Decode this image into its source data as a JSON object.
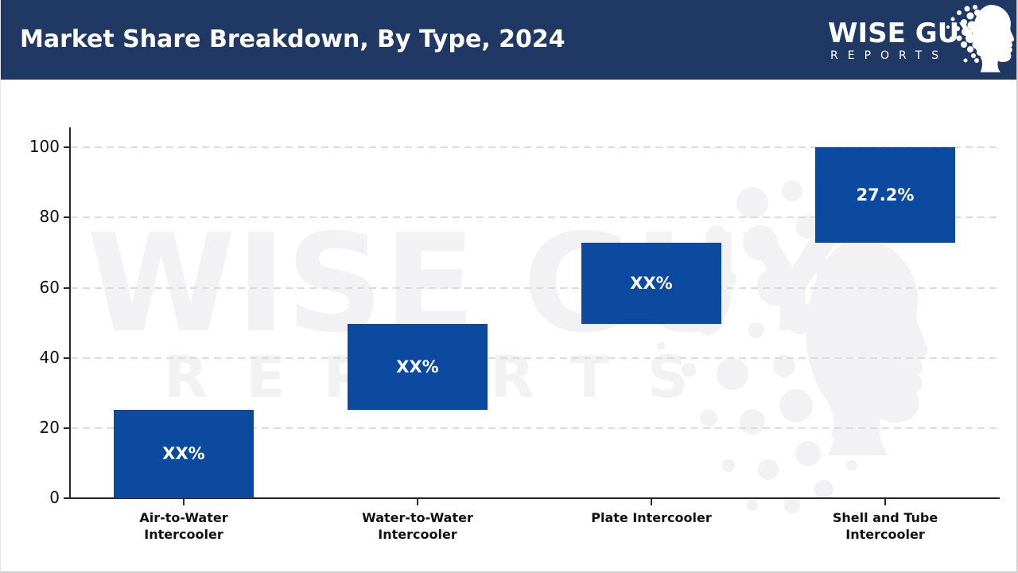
{
  "header": {
    "title": "Market Share Breakdown, By Type, 2024",
    "logo": {
      "line1": "WISE GUY",
      "line2": "REPORTS"
    }
  },
  "watermark": {
    "line1": "WISE GUY",
    "line2": "REPORTS"
  },
  "colors": {
    "header_bg": "#1f3864",
    "bar": "#0b4a9e",
    "bar_label_text": "#ffffff",
    "title_text": "#ffffff",
    "axis": "#262626",
    "tick_text": "#111111",
    "gridline": "#dcdcdc",
    "watermark": "#f2f2f4"
  },
  "chart_data": {
    "type": "bar",
    "subtype": "waterfall",
    "title": "Market Share Breakdown, By Type, 2024",
    "categories": [
      "Air-to-Water Intercooler",
      "Water-to-Water Intercooler",
      "Plate Intercooler",
      "Shell and Tube Intercooler"
    ],
    "category_label_lines": [
      [
        "Air-to-Water",
        "Intercooler"
      ],
      [
        "Water-to-Water",
        "Intercooler"
      ],
      [
        "Plate Intercooler"
      ],
      [
        "Shell and Tube",
        "Intercooler"
      ]
    ],
    "segments": [
      {
        "category": "Air-to-Water Intercooler",
        "start": 0,
        "end": 25.2,
        "value": 25.2,
        "label": "XX%"
      },
      {
        "category": "Water-to-Water Intercooler",
        "start": 25.2,
        "end": 49.8,
        "value": 24.6,
        "label": "XX%"
      },
      {
        "category": "Plate Intercooler",
        "start": 49.8,
        "end": 72.8,
        "value": 23.0,
        "label": "XX%"
      },
      {
        "category": "Shell and Tube Intercooler",
        "start": 72.8,
        "end": 100,
        "value": 27.2,
        "label": "27.2%"
      }
    ],
    "xlabel": "",
    "ylabel": "",
    "ylim": [
      0,
      100
    ],
    "yticks": [
      0,
      20,
      40,
      60,
      80,
      100
    ],
    "grid": "horizontal-dashed",
    "legend": "none",
    "bar_color": "#0b4a9e",
    "label_color": "#ffffff"
  }
}
